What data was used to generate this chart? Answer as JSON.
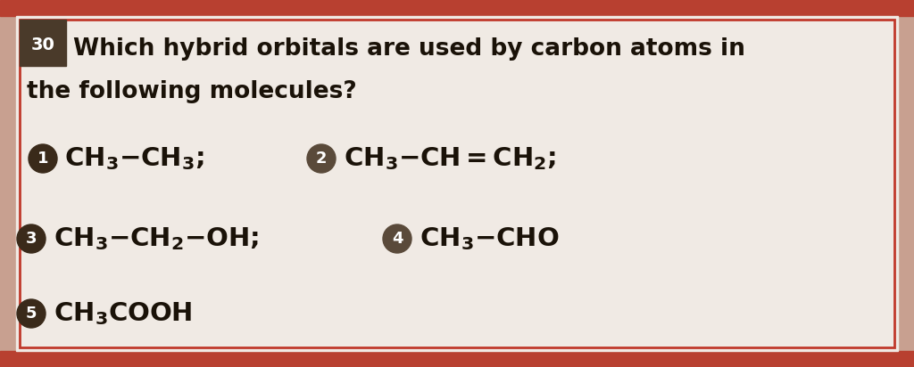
{
  "background_color": "#f0eae4",
  "outer_bg": "#c8a090",
  "border_color": "#c0392b",
  "number_box_color": "#4a3a2a",
  "number_box_text": "30",
  "title_line1": "Which hybrid orbitals are used by carbon atoms in",
  "title_line2": "the following molecules?",
  "title_fontsize": 19,
  "title_color": "#1a1208",
  "molecule_fontsize": 21,
  "molecule_color": "#1a1208",
  "circle_fill": "#3a2a1a",
  "circle_fill2": "#5a4a3a",
  "circle_text_color": "#ffffff",
  "fig_width": 10.24,
  "fig_height": 4.12,
  "dpi": 100
}
